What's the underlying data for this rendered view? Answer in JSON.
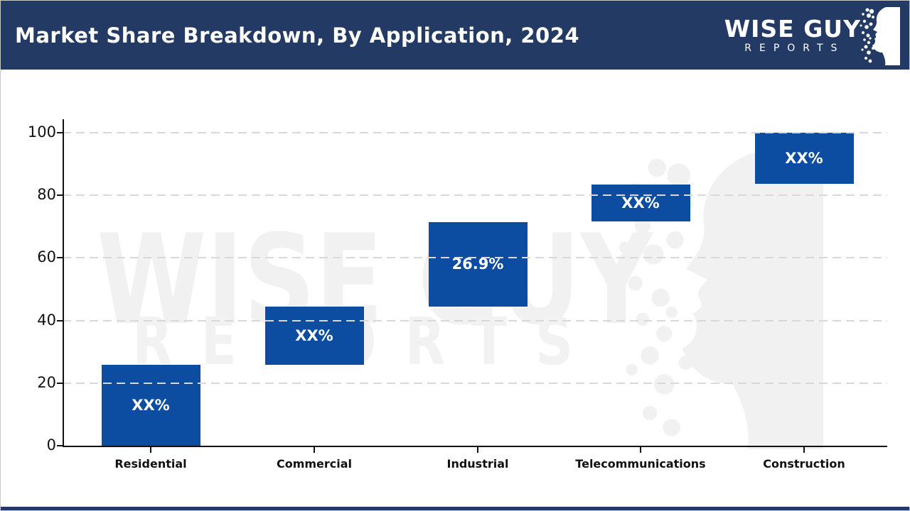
{
  "header": {
    "title": "Market Share Breakdown, By Application, 2024",
    "logo": {
      "line1": "WISE GUY",
      "line2": "REPORTS"
    }
  },
  "watermark": {
    "line1": "WISE GUY",
    "line2": "REPORTS"
  },
  "colors": {
    "header_bg": "#233a64",
    "bar": "#0c4da2",
    "grid": "#d9d9d9",
    "axis": "#111111",
    "bar_label": "#ffffff",
    "watermark": "#f1f1f1"
  },
  "chart_data": {
    "type": "bar",
    "subtype": "waterfall",
    "title": "Market Share Breakdown, By Application, 2024",
    "categories": [
      "Residential",
      "Commercial",
      "Industrial",
      "Telecommunications",
      "Construction"
    ],
    "segments": [
      {
        "category": "Residential",
        "start": 0,
        "end": 25.9,
        "label": "XX%"
      },
      {
        "category": "Commercial",
        "start": 25.9,
        "end": 44.4,
        "label": "XX%"
      },
      {
        "category": "Industrial",
        "start": 44.5,
        "end": 71.4,
        "label": "26.9%"
      },
      {
        "category": "Telecommunications",
        "start": 71.7,
        "end": 83.4,
        "label": "XX%"
      },
      {
        "category": "Construction",
        "start": 83.7,
        "end": 100,
        "label": "XX%"
      }
    ],
    "yticks": [
      0,
      20,
      40,
      60,
      80,
      100
    ],
    "ylim": [
      0,
      104
    ],
    "xlabel": "",
    "ylabel": "",
    "grid": "horizontal-dashed",
    "legend": "none",
    "bar_color": "#0c4da2"
  }
}
